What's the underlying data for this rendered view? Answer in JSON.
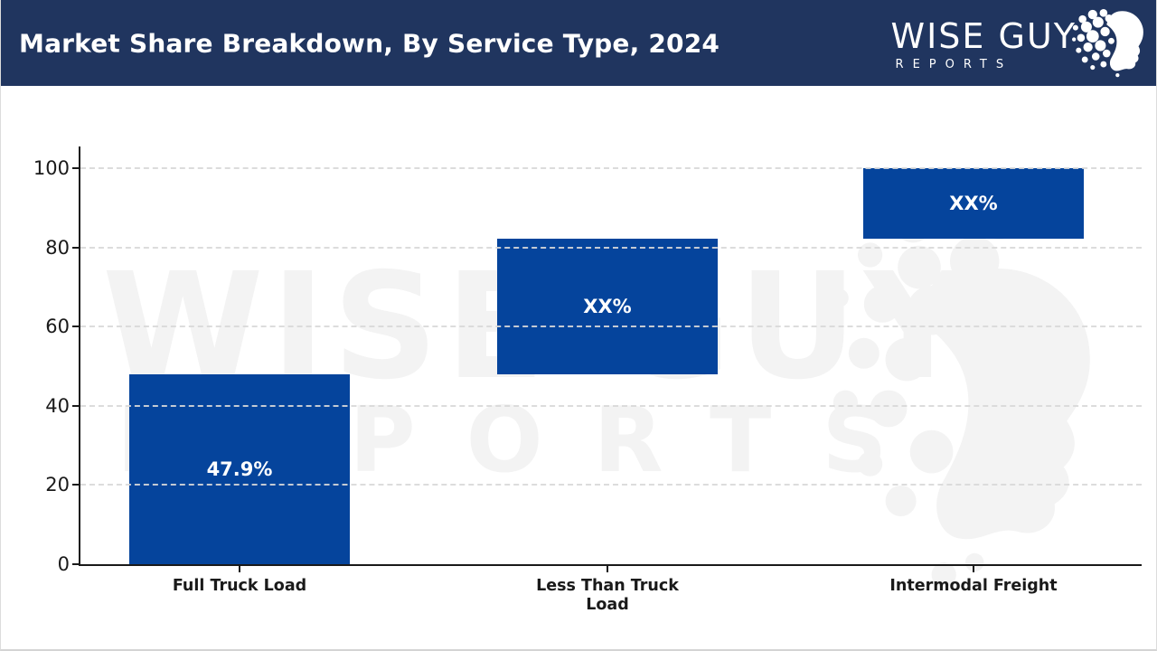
{
  "header": {
    "title": "Market Share Breakdown, By Service Type, 2024",
    "logo": {
      "line1": "WISE GUY",
      "line2": "REPORTS"
    }
  },
  "watermark": {
    "line1": "WISE GUY",
    "line2": "REPORTS"
  },
  "colors": {
    "header_bg": "#20355f",
    "bar": "#05449c",
    "grid_dash": "#d9d9d9",
    "axis": "#1a1a1a",
    "bar_label_text": "#ffffff",
    "watermark": "#f3f3f3"
  },
  "chart_data": {
    "type": "bar",
    "subtype": "waterfall",
    "title": "Market Share Breakdown, By Service Type, 2024",
    "categories": [
      "Full Truck Load",
      "Less Than Truck Load",
      "Intermodal Freight"
    ],
    "category_lines": [
      [
        "Full Truck Load"
      ],
      [
        "Less Than Truck",
        "Load"
      ],
      [
        "Intermodal Freight"
      ]
    ],
    "segments": [
      {
        "category": "Full Truck Load",
        "start": 0,
        "end": 47.9,
        "label": "47.9%"
      },
      {
        "category": "Less Than Truck Load",
        "start": 47.9,
        "end": 82.2,
        "label": "XX%"
      },
      {
        "category": "Intermodal Freight",
        "start": 82.2,
        "end": 100,
        "label": "XX%"
      }
    ],
    "y_ticks": [
      0,
      20,
      40,
      60,
      80,
      100
    ],
    "ylim": [
      0,
      100
    ],
    "xlabel": "",
    "ylabel": "",
    "grid": "horizontal dashed",
    "legend": "none"
  }
}
